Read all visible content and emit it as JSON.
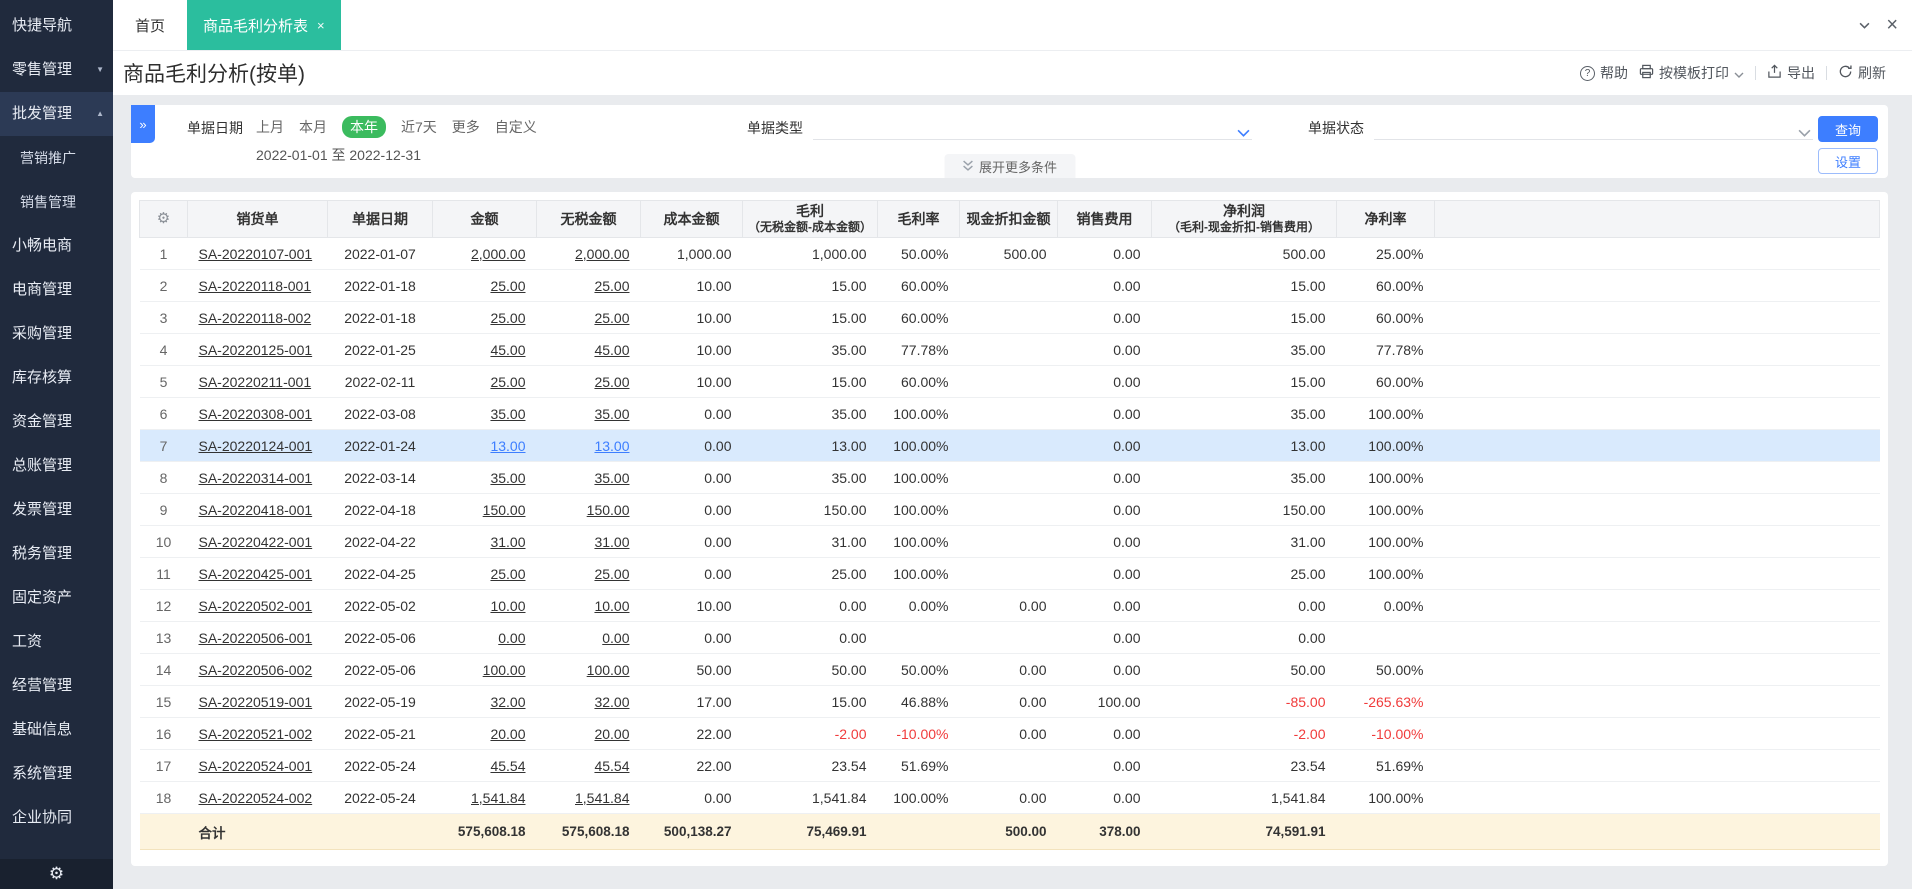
{
  "colors": {
    "accent_blue": "#3d7eff",
    "tab_active_teal": "#2bbe9e",
    "pill_green": "#3bbb5e",
    "negative_red": "#f03b3b",
    "selected_row": "#d9eafd",
    "total_row_bg": "#fdf4de",
    "sidebar_bg": "#202a3d"
  },
  "window": {
    "close_glyph": "×"
  },
  "tabs": [
    {
      "label": "首页"
    },
    {
      "label": "商品毛利分析表",
      "close_glyph": "×"
    }
  ],
  "sidebar": {
    "items": [
      {
        "id": "quick-nav",
        "label": "快捷导航"
      },
      {
        "id": "retail",
        "label": "零售管理",
        "arrow": "down"
      },
      {
        "id": "wholesale",
        "label": "批发管理",
        "arrow": "up",
        "active": true
      },
      {
        "id": "marketing",
        "label": "营销推广",
        "sub": true
      },
      {
        "id": "sales",
        "label": "销售管理",
        "sub": true
      },
      {
        "id": "xiaochang-ecom",
        "label": "小畅电商"
      },
      {
        "id": "ecommerce",
        "label": "电商管理"
      },
      {
        "id": "purchasing",
        "label": "采购管理"
      },
      {
        "id": "inventory",
        "label": "库存核算"
      },
      {
        "id": "funds",
        "label": "资金管理"
      },
      {
        "id": "general-ledger",
        "label": "总账管理"
      },
      {
        "id": "invoice",
        "label": "发票管理"
      },
      {
        "id": "tax",
        "label": "税务管理"
      },
      {
        "id": "fixed-assets",
        "label": "固定资产"
      },
      {
        "id": "payroll",
        "label": "工资"
      },
      {
        "id": "operations",
        "label": "经营管理"
      },
      {
        "id": "base-info",
        "label": "基础信息"
      },
      {
        "id": "system",
        "label": "系统管理"
      },
      {
        "id": "collaboration",
        "label": "企业协同"
      }
    ]
  },
  "header": {
    "title": "商品毛利分析(按单)",
    "help": "帮助",
    "print": "按模板打印",
    "export": "导出",
    "refresh": "刷新"
  },
  "filters": {
    "date_label": "单据日期",
    "date_options": [
      "上月",
      "本月",
      "本年",
      "近7天",
      "更多",
      "自定义"
    ],
    "date_selected": "本年",
    "date_range": "2022-01-01 至 2022-12-31",
    "doc_type_label": "单据类型",
    "doc_status_label": "单据状态",
    "query_button": "查询",
    "settings_button": "设置",
    "expand_more": "展开更多条件"
  },
  "table": {
    "columns": [
      {
        "label": "销货单"
      },
      {
        "label": "单据日期"
      },
      {
        "label": "金额"
      },
      {
        "label": "无税金额"
      },
      {
        "label": "成本金额"
      },
      {
        "label": "毛利",
        "sub": "（无税金额-成本金额）"
      },
      {
        "label": "毛利率"
      },
      {
        "label": "现金折扣金额"
      },
      {
        "label": "销售费用"
      },
      {
        "label": "净利润",
        "sub": "（毛利-现金折扣-销售费用）"
      },
      {
        "label": "净利率"
      }
    ],
    "rows": [
      {
        "num": "1",
        "order": "SA-20220107-001",
        "date": "2022-01-07",
        "amount": "2,000.00",
        "tax_free": "2,000.00",
        "cost": "1,000.00",
        "gross": "1,000.00",
        "gross_rate": "50.00%",
        "cash_discount": "500.00",
        "expense": "0.00",
        "net": "500.00",
        "net_rate": "25.00%"
      },
      {
        "num": "2",
        "order": "SA-20220118-001",
        "date": "2022-01-18",
        "amount": "25.00",
        "tax_free": "25.00",
        "cost": "10.00",
        "gross": "15.00",
        "gross_rate": "60.00%",
        "cash_discount": "",
        "expense": "0.00",
        "net": "15.00",
        "net_rate": "60.00%"
      },
      {
        "num": "3",
        "order": "SA-20220118-002",
        "date": "2022-01-18",
        "amount": "25.00",
        "tax_free": "25.00",
        "cost": "10.00",
        "gross": "15.00",
        "gross_rate": "60.00%",
        "cash_discount": "",
        "expense": "0.00",
        "net": "15.00",
        "net_rate": "60.00%"
      },
      {
        "num": "4",
        "order": "SA-20220125-001",
        "date": "2022-01-25",
        "amount": "45.00",
        "tax_free": "45.00",
        "cost": "10.00",
        "gross": "35.00",
        "gross_rate": "77.78%",
        "cash_discount": "",
        "expense": "0.00",
        "net": "35.00",
        "net_rate": "77.78%"
      },
      {
        "num": "5",
        "order": "SA-20220211-001",
        "date": "2022-02-11",
        "amount": "25.00",
        "tax_free": "25.00",
        "cost": "10.00",
        "gross": "15.00",
        "gross_rate": "60.00%",
        "cash_discount": "",
        "expense": "0.00",
        "net": "15.00",
        "net_rate": "60.00%"
      },
      {
        "num": "6",
        "order": "SA-20220308-001",
        "date": "2022-03-08",
        "amount": "35.00",
        "tax_free": "35.00",
        "cost": "0.00",
        "gross": "35.00",
        "gross_rate": "100.00%",
        "cash_discount": "",
        "expense": "0.00",
        "net": "35.00",
        "net_rate": "100.00%"
      },
      {
        "num": "7",
        "order": "SA-20220124-001",
        "date": "2022-01-24",
        "amount": "13.00",
        "tax_free": "13.00",
        "cost": "0.00",
        "gross": "13.00",
        "gross_rate": "100.00%",
        "cash_discount": "",
        "expense": "0.00",
        "net": "13.00",
        "net_rate": "100.00%",
        "selected": true
      },
      {
        "num": "8",
        "order": "SA-20220314-001",
        "date": "2022-03-14",
        "amount": "35.00",
        "tax_free": "35.00",
        "cost": "0.00",
        "gross": "35.00",
        "gross_rate": "100.00%",
        "cash_discount": "",
        "expense": "0.00",
        "net": "35.00",
        "net_rate": "100.00%"
      },
      {
        "num": "9",
        "order": "SA-20220418-001",
        "date": "2022-04-18",
        "amount": "150.00",
        "tax_free": "150.00",
        "cost": "0.00",
        "gross": "150.00",
        "gross_rate": "100.00%",
        "cash_discount": "",
        "expense": "0.00",
        "net": "150.00",
        "net_rate": "100.00%"
      },
      {
        "num": "10",
        "order": "SA-20220422-001",
        "date": "2022-04-22",
        "amount": "31.00",
        "tax_free": "31.00",
        "cost": "0.00",
        "gross": "31.00",
        "gross_rate": "100.00%",
        "cash_discount": "",
        "expense": "0.00",
        "net": "31.00",
        "net_rate": "100.00%"
      },
      {
        "num": "11",
        "order": "SA-20220425-001",
        "date": "2022-04-25",
        "amount": "25.00",
        "tax_free": "25.00",
        "cost": "0.00",
        "gross": "25.00",
        "gross_rate": "100.00%",
        "cash_discount": "",
        "expense": "0.00",
        "net": "25.00",
        "net_rate": "100.00%"
      },
      {
        "num": "12",
        "order": "SA-20220502-001",
        "date": "2022-05-02",
        "amount": "10.00",
        "tax_free": "10.00",
        "cost": "10.00",
        "gross": "0.00",
        "gross_rate": "0.00%",
        "cash_discount": "0.00",
        "expense": "0.00",
        "net": "0.00",
        "net_rate": "0.00%"
      },
      {
        "num": "13",
        "order": "SA-20220506-001",
        "date": "2022-05-06",
        "amount": "0.00",
        "tax_free": "0.00",
        "cost": "0.00",
        "gross": "0.00",
        "gross_rate": "",
        "cash_discount": "",
        "expense": "0.00",
        "net": "0.00",
        "net_rate": ""
      },
      {
        "num": "14",
        "order": "SA-20220506-002",
        "date": "2022-05-06",
        "amount": "100.00",
        "tax_free": "100.00",
        "cost": "50.00",
        "gross": "50.00",
        "gross_rate": "50.00%",
        "cash_discount": "0.00",
        "expense": "0.00",
        "net": "50.00",
        "net_rate": "50.00%"
      },
      {
        "num": "15",
        "order": "SA-20220519-001",
        "date": "2022-05-19",
        "amount": "32.00",
        "tax_free": "32.00",
        "cost": "17.00",
        "gross": "15.00",
        "gross_rate": "46.88%",
        "cash_discount": "0.00",
        "expense": "100.00",
        "net": "-85.00",
        "net_rate": "-265.63%"
      },
      {
        "num": "16",
        "order": "SA-20220521-002",
        "date": "2022-05-21",
        "amount": "20.00",
        "tax_free": "20.00",
        "cost": "22.00",
        "gross": "-2.00",
        "gross_rate": "-10.00%",
        "cash_discount": "0.00",
        "expense": "0.00",
        "net": "-2.00",
        "net_rate": "-10.00%"
      },
      {
        "num": "17",
        "order": "SA-20220524-001",
        "date": "2022-05-24",
        "amount": "45.54",
        "tax_free": "45.54",
        "cost": "22.00",
        "gross": "23.54",
        "gross_rate": "51.69%",
        "cash_discount": "",
        "expense": "0.00",
        "net": "23.54",
        "net_rate": "51.69%"
      },
      {
        "num": "18",
        "order": "SA-20220524-002",
        "date": "2022-05-24",
        "amount": "1,541.84",
        "tax_free": "1,541.84",
        "cost": "0.00",
        "gross": "1,541.84",
        "gross_rate": "100.00%",
        "cash_discount": "0.00",
        "expense": "0.00",
        "net": "1,541.84",
        "net_rate": "100.00%"
      }
    ],
    "total": {
      "label": "合计",
      "amount": "575,608.18",
      "tax_free": "575,608.18",
      "cost": "500,138.27",
      "gross": "75,469.91",
      "cash_discount": "500.00",
      "expense": "378.00",
      "net": "74,591.91"
    }
  }
}
